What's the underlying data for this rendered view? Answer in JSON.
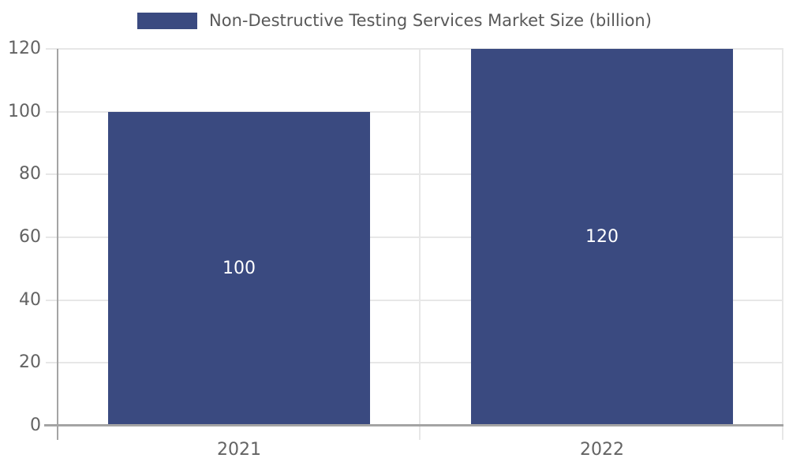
{
  "legend": {
    "label": "Non-Destructive Testing Services Market Size (billion)",
    "swatch_color": "#3A4A80"
  },
  "chart_data": {
    "type": "bar",
    "title": "Non-Destructive Testing Services Market Size (billion)",
    "categories": [
      "2021",
      "2022"
    ],
    "values": [
      100,
      120
    ],
    "bar_labels": [
      "100",
      "120"
    ],
    "xlabel": "",
    "ylabel": "",
    "ylim": [
      0,
      120
    ],
    "yticks": [
      0,
      20,
      40,
      60,
      80,
      100,
      120
    ],
    "grid": true,
    "legend_position": "top-center",
    "colors": {
      "bar": "#3A4A80",
      "bar_label": "#FFFFFF",
      "axis_line": "#A4A4A4",
      "gridline": "#E7E7E7",
      "tick_label": "#636363",
      "legend_text": "#595959",
      "background": "#FFFFFF"
    }
  }
}
